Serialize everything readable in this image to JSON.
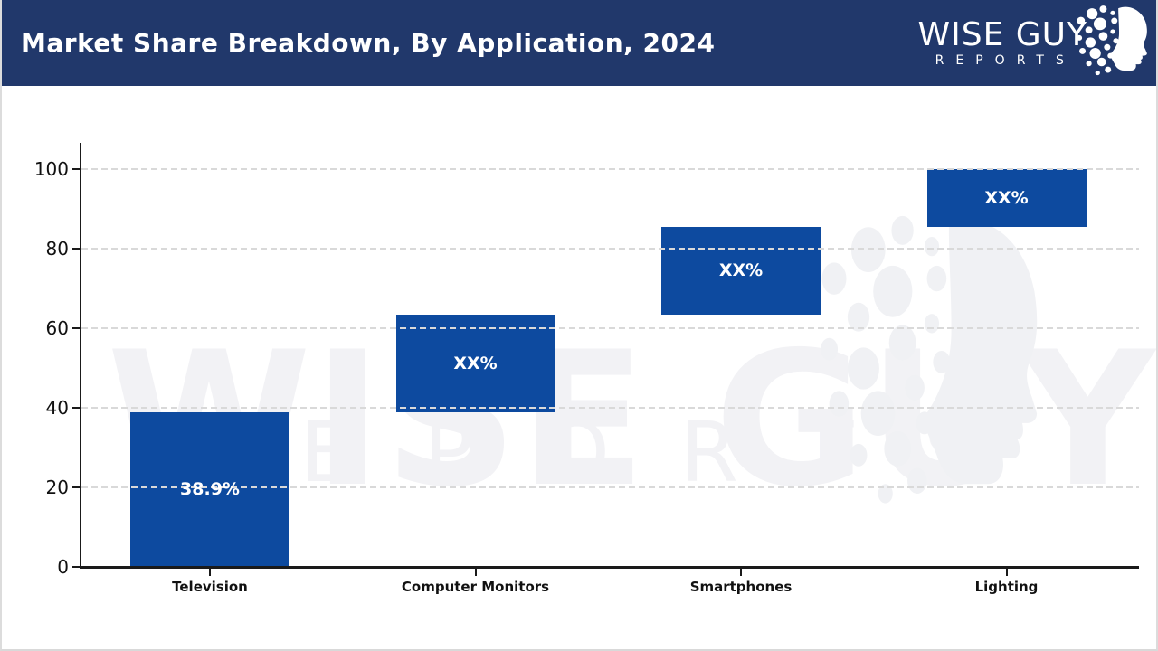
{
  "header": {
    "title": "Market Share Breakdown, By Application, 2024",
    "logo": {
      "line1": "WISE GUY",
      "line2": "REPORTS"
    }
  },
  "watermark": {
    "line1": "WISE GUY",
    "line2": "REPORTS"
  },
  "colors": {
    "header_bg": "#21386b",
    "bar": "#0d4a9f",
    "bar_label": "#ffffff",
    "grid": "#d9d9d9",
    "axis": "#1a1a1a",
    "watermark": "#f2f2f5"
  },
  "chart_data": {
    "type": "bar",
    "variant": "stacked-waterfall-floating",
    "title": "Market Share Breakdown, By Application, 2024",
    "categories": [
      "Television",
      "Computer Monitors",
      "Smartphones",
      "Lighting"
    ],
    "segments": [
      {
        "category": "Television",
        "start": 0,
        "end": 38.9,
        "label": "38.9%"
      },
      {
        "category": "Computer Monitors",
        "start": 38.9,
        "end": 63.4,
        "label": "XX%"
      },
      {
        "category": "Smartphones",
        "start": 63.4,
        "end": 85.5,
        "label": "XX%"
      },
      {
        "category": "Lighting",
        "start": 85.5,
        "end": 100,
        "label": "XX%"
      }
    ],
    "xlabel": "",
    "ylabel": "",
    "ylim": [
      0,
      100
    ],
    "yticks": [
      0,
      20,
      40,
      60,
      80,
      100
    ],
    "grid": "horizontal-dashed",
    "legend": "none"
  }
}
